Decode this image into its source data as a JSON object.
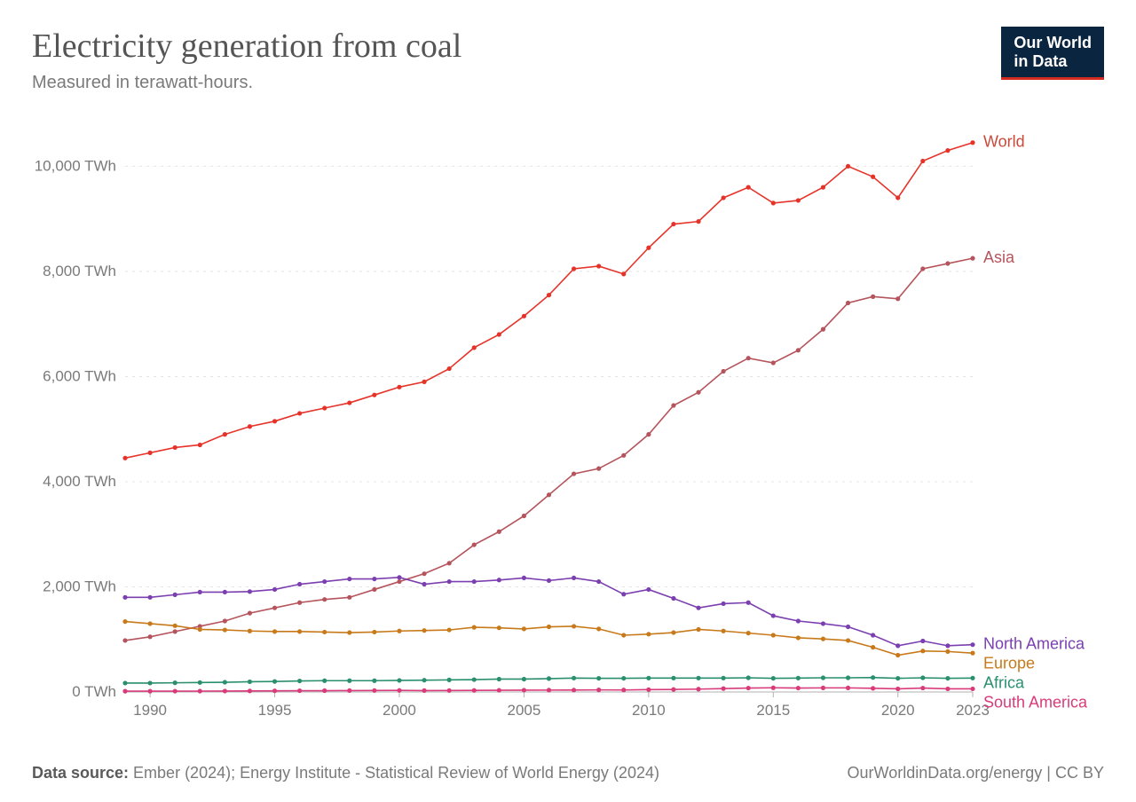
{
  "header": {
    "title": "Electricity generation from coal",
    "subtitle": "Measured in terawatt-hours.",
    "logo_line1": "Our World",
    "logo_line2": "in Data",
    "logo_bg": "#0a2540",
    "logo_accent": "#d42b21"
  },
  "footer": {
    "source_label": "Data source:",
    "source_text": " Ember (2024); Energy Institute - Statistical Review of World Energy (2024)",
    "attribution": "OurWorldinData.org/energy | CC BY"
  },
  "chart": {
    "type": "line",
    "background_color": "#ffffff",
    "grid_color": "#e4e4e4",
    "axis_color": "#b0b0b0",
    "tick_font_color": "#7a7a7a",
    "tick_font_size": 17,
    "series_label_font_size": 18,
    "line_width": 1.6,
    "marker_radius": 2.6,
    "x": {
      "min": 1989,
      "max": 2023,
      "ticks": [
        1990,
        1995,
        2000,
        2005,
        2010,
        2015,
        2020,
        2023
      ]
    },
    "y": {
      "min": 0,
      "max": 10800,
      "ticks": [
        0,
        2000,
        4000,
        6000,
        8000,
        10000
      ],
      "tick_labels": [
        "0 TWh",
        "2,000 TWh",
        "4,000 TWh",
        "6,000 TWh",
        "8,000 TWh",
        "10,000 TWh"
      ]
    },
    "years": [
      1989,
      1990,
      1991,
      1992,
      1993,
      1994,
      1995,
      1996,
      1997,
      1998,
      1999,
      2000,
      2001,
      2002,
      2003,
      2004,
      2005,
      2006,
      2007,
      2008,
      2009,
      2010,
      2011,
      2012,
      2013,
      2014,
      2015,
      2016,
      2017,
      2018,
      2019,
      2020,
      2021,
      2022,
      2023
    ],
    "series": [
      {
        "name": "World",
        "color": "#e6332a",
        "label_color": "#c94a3b",
        "values": [
          4450,
          4550,
          4650,
          4700,
          4900,
          5050,
          5150,
          5300,
          5400,
          5500,
          5650,
          5800,
          5900,
          6150,
          6550,
          6800,
          7150,
          7550,
          8050,
          8100,
          7950,
          8450,
          8900,
          8950,
          9400,
          9600,
          9300,
          9350,
          9600,
          10000,
          9800,
          9400,
          10100,
          10300,
          10450
        ]
      },
      {
        "name": "Asia",
        "color": "#b5545c",
        "label_color": "#b5545c",
        "values": [
          980,
          1050,
          1150,
          1250,
          1350,
          1500,
          1600,
          1700,
          1760,
          1800,
          1950,
          2100,
          2250,
          2450,
          2800,
          3050,
          3350,
          3750,
          4150,
          4250,
          4500,
          4900,
          5450,
          5700,
          6100,
          6350,
          6260,
          6500,
          6900,
          7400,
          7520,
          7480,
          8050,
          8150,
          8250
        ]
      },
      {
        "name": "North America",
        "color": "#7b3fb0",
        "label_color": "#7b3fb0",
        "values": [
          1800,
          1800,
          1850,
          1900,
          1900,
          1910,
          1950,
          2050,
          2100,
          2150,
          2150,
          2180,
          2050,
          2100,
          2100,
          2130,
          2170,
          2120,
          2170,
          2100,
          1860,
          1950,
          1780,
          1600,
          1680,
          1700,
          1450,
          1350,
          1300,
          1240,
          1080,
          880,
          970,
          880,
          900
        ]
      },
      {
        "name": "Europe",
        "color": "#c87a1b",
        "label_color": "#c87a1b",
        "values": [
          1340,
          1300,
          1260,
          1190,
          1180,
          1160,
          1150,
          1150,
          1140,
          1130,
          1140,
          1160,
          1170,
          1180,
          1230,
          1220,
          1200,
          1240,
          1250,
          1200,
          1080,
          1100,
          1130,
          1190,
          1160,
          1120,
          1080,
          1030,
          1010,
          980,
          850,
          700,
          780,
          770,
          740
        ]
      },
      {
        "name": "Africa",
        "color": "#2a8f6f",
        "label_color": "#2a8f6f",
        "values": [
          170,
          170,
          175,
          180,
          185,
          195,
          200,
          210,
          215,
          215,
          215,
          220,
          225,
          230,
          235,
          245,
          245,
          255,
          265,
          260,
          260,
          265,
          265,
          265,
          265,
          270,
          260,
          265,
          270,
          270,
          275,
          260,
          270,
          260,
          265
        ]
      },
      {
        "name": "South America",
        "color": "#d93b7a",
        "label_color": "#d93b7a",
        "values": [
          15,
          15,
          16,
          17,
          18,
          20,
          22,
          24,
          25,
          27,
          28,
          30,
          27,
          28,
          30,
          33,
          35,
          36,
          37,
          40,
          38,
          45,
          48,
          55,
          65,
          75,
          80,
          75,
          78,
          78,
          70,
          60,
          75,
          60,
          60
        ]
      }
    ]
  }
}
